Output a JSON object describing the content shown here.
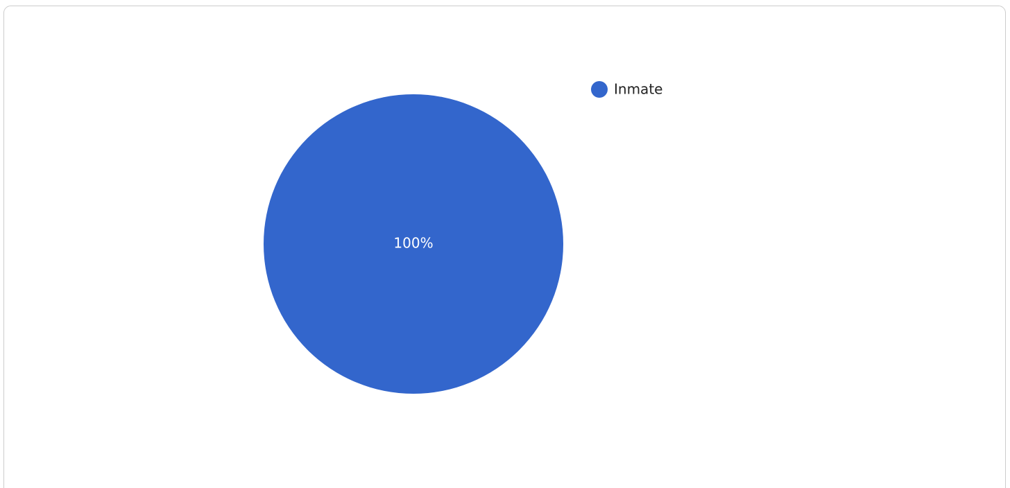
{
  "chart_data": {
    "type": "pie",
    "categories": [
      "Inmate"
    ],
    "values": [
      100
    ],
    "value_labels": [
      "100%"
    ],
    "colors": [
      "#3366cc"
    ],
    "legend": "right"
  }
}
